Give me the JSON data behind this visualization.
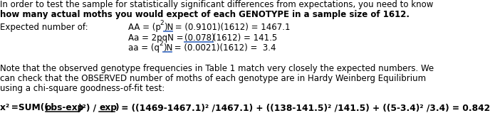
{
  "bg_color": "#ffffff",
  "line1": "In order to test the sample for statistically significant differences from expectations, you need to know",
  "line2_bold": "how many actual moths you would expect of each GENOTYPE in a sample size of 1612.",
  "label_expected": "Expected number of:",
  "note_line1": "Note that the observed genotype frequencies in Table 1 match very closely the expected numbers. We",
  "note_line2": "can check that the OBSERVED number of moths of each genotype are in Hardy Weinberg Equilibrium",
  "note_line3": "using a chi-square goodness-of-fit test:",
  "chi_eq": " = ((1469-1467.1)² /1467.1) + ((138-141.5)² /141.5) + ((5-3.4)² /3.4) = 0.842",
  "font_size": 8.5,
  "chi_font_size": 8.8,
  "underline_color": "#4472C4"
}
